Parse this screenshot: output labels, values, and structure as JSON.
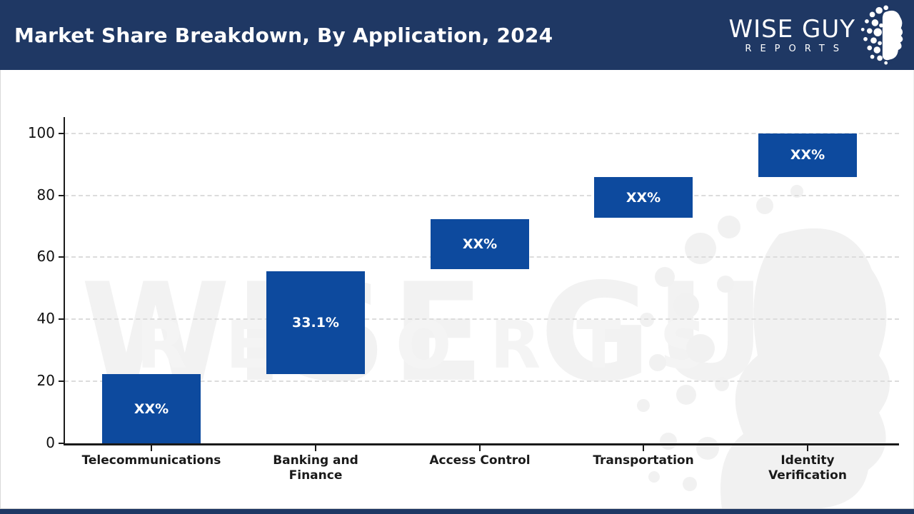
{
  "header": {
    "title": "Market Share Breakdown, By Application, 2024",
    "logo": {
      "line1": "WISE GUY",
      "line2": "REPORTS"
    }
  },
  "watermark": {
    "line1": "WISE GUY",
    "line2": "REPORTS"
  },
  "colors": {
    "header_bg": "#1F3864",
    "footer_bg": "#1F3864",
    "bar": "#0D4A9E",
    "bar_label": "#FFFFFF",
    "grid": "#DCDCDC",
    "axis": "#1A1A1A",
    "watermark": "#F2F2F2"
  },
  "chart_data": {
    "type": "bar",
    "subtype": "waterfall (floating bars)",
    "title": "Market Share Breakdown, By Application, 2024",
    "categories": [
      "Telecommunications",
      "Banking and Finance",
      "Access Control",
      "Transportation",
      "Identity Verification"
    ],
    "category_label_lines": [
      [
        "Telecommunications"
      ],
      [
        "Banking and",
        "Finance"
      ],
      [
        "Access Control"
      ],
      [
        "Transportation"
      ],
      [
        "Identity",
        "Verification"
      ]
    ],
    "bars": [
      {
        "category": "Telecommunications",
        "start": 0,
        "end": 22.3,
        "label": "XX%"
      },
      {
        "category": "Banking and Finance",
        "start": 22.3,
        "end": 55.4,
        "label": "33.1%",
        "value": 33.1
      },
      {
        "category": "Access Control",
        "start": 56.1,
        "end": 72.4,
        "label": "XX%"
      },
      {
        "category": "Transportation",
        "start": 72.8,
        "end": 85.8,
        "label": "XX%"
      },
      {
        "category": "Identity Verification",
        "start": 85.9,
        "end": 100,
        "label": "XX%"
      }
    ],
    "yticks": [
      0,
      20,
      40,
      60,
      80,
      100
    ],
    "ylim": [
      0,
      100
    ],
    "xlabel": "",
    "ylabel": "",
    "grid": "horizontal dashed gridlines at each y tick (no line at 0)",
    "legend": "none"
  }
}
